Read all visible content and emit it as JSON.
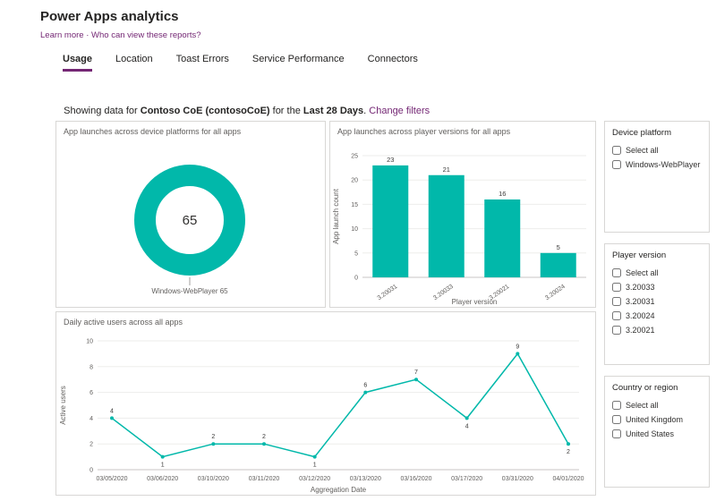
{
  "colors": {
    "accent": "#01B8AA",
    "link_purple": "#742774"
  },
  "header": {
    "title": "Power Apps analytics",
    "links": [
      "Learn more",
      "Who can view these reports?"
    ],
    "separator": " · "
  },
  "tabs": [
    {
      "label": "Usage",
      "active": true
    },
    {
      "label": "Location",
      "active": false
    },
    {
      "label": "Toast Errors",
      "active": false
    },
    {
      "label": "Service Performance",
      "active": false
    },
    {
      "label": "Connectors",
      "active": false
    }
  ],
  "filter_line": {
    "prefix": "Showing data for ",
    "environment": "Contoso CoE (contosoCoE)",
    "middle": " for the ",
    "range": "Last 28 Days",
    "period": ". ",
    "link": "Change filters"
  },
  "chart_data": [
    {
      "type": "pie",
      "title": "App launches across device platforms for all apps",
      "labels": [
        "Windows-WebPlayer"
      ],
      "values": [
        65
      ],
      "center_label": "65",
      "legend_position": "bottom-callout"
    },
    {
      "type": "bar",
      "title": "App launches across player versions for all apps",
      "categories": [
        "3.20031",
        "3.20033",
        "3.20021",
        "3.20024"
      ],
      "values": [
        23,
        21,
        16,
        5
      ],
      "xlabel": "Player version",
      "ylabel": "App launch count",
      "ylim": [
        0,
        25
      ],
      "yticks": [
        0,
        5,
        10,
        15,
        20,
        25
      ],
      "grid": true
    },
    {
      "type": "line",
      "title": "Daily active users across all apps",
      "categories": [
        "03/05/2020",
        "03/06/2020",
        "03/10/2020",
        "03/11/2020",
        "03/12/2020",
        "03/13/2020",
        "03/16/2020",
        "03/17/2020",
        "03/31/2020",
        "04/01/2020"
      ],
      "values": [
        4,
        1,
        2,
        2,
        1,
        6,
        7,
        4,
        9,
        2
      ],
      "xlabel": "Aggregation Date",
      "ylabel": "Active users",
      "ylim": [
        0,
        10
      ],
      "yticks": [
        0,
        2,
        4,
        6,
        8,
        10
      ],
      "grid": true
    }
  ],
  "panels": [
    {
      "title": "Device platform",
      "options": [
        "Select all",
        "Windows-WebPlayer"
      ]
    },
    {
      "title": "Player version",
      "options": [
        "Select all",
        "3.20033",
        "3.20031",
        "3.20024",
        "3.20021"
      ]
    },
    {
      "title": "Country or region",
      "options": [
        "Select all",
        "United Kingdom",
        "United States"
      ]
    }
  ]
}
